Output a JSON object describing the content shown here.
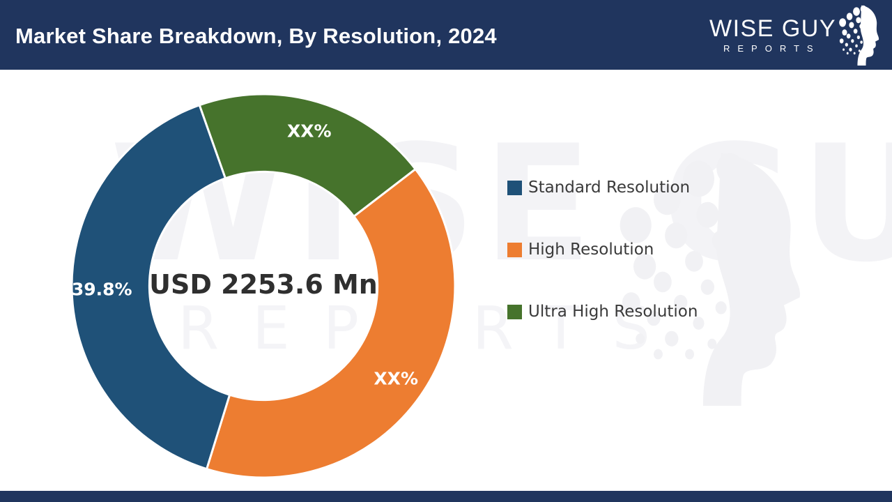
{
  "header": {
    "title": "Market Share Breakdown, By Resolution, 2024",
    "bg_color": "#20355e",
    "logo": {
      "name": "WISE GUY",
      "sub": "REPORTS"
    }
  },
  "watermark": {
    "line1": "WISE GUY",
    "line2": "REPORTS"
  },
  "chart_data": {
    "type": "pie",
    "subtype": "donut",
    "title": "Market Share Breakdown, By Resolution, 2024",
    "center_label": "USD 2253.6 Mn",
    "start_angle_deg": -19.5,
    "inner_radius_ratio": 0.595,
    "label_radius_ratio": 0.843,
    "separator_color": "#ffffff",
    "segments": [
      {
        "name": "Ultra High Resolution",
        "value": 20.0,
        "label": "XX%",
        "color": "#46732c"
      },
      {
        "name": "High Resolution",
        "value": 40.2,
        "label": "XX%",
        "color": "#ed7d31"
      },
      {
        "name": "Standard Resolution",
        "value": 39.8,
        "label": "39.8%",
        "color": "#1f5178"
      }
    ],
    "legend": [
      {
        "name": "Standard Resolution",
        "color": "#1f5178"
      },
      {
        "name": "High Resolution",
        "color": "#ed7d31"
      },
      {
        "name": "Ultra High Resolution",
        "color": "#46732c"
      }
    ],
    "legend_position": "right"
  },
  "footer": {
    "bg_color": "#20355e"
  }
}
